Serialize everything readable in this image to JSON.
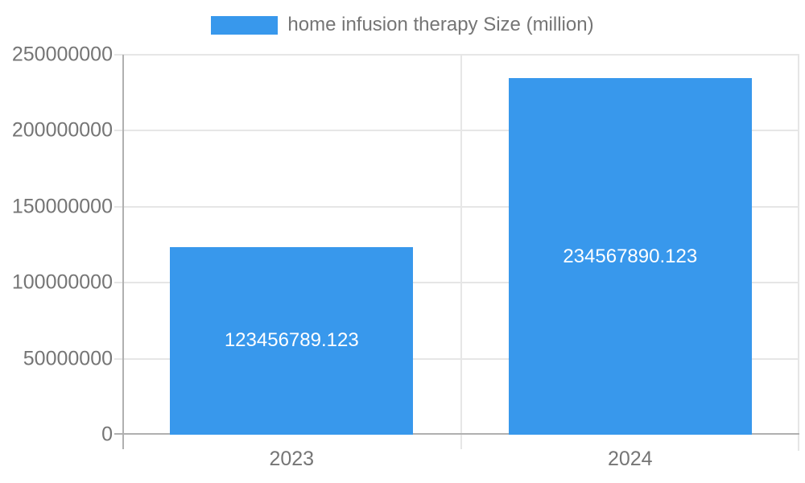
{
  "legend": {
    "label": "home infusion therapy Size (million)"
  },
  "colors": {
    "bar": "#3898ec",
    "axis_text": "#757575",
    "data_label_text": "#ffffff",
    "grid_line": "#e6e6e6",
    "axis_line": "#b0b0b0",
    "background": "#ffffff"
  },
  "chart_data": {
    "type": "bar",
    "title": "",
    "xlabel": "",
    "ylabel": "",
    "categories": [
      "2023",
      "2024"
    ],
    "series": [
      {
        "name": "home infusion therapy Size (million)",
        "values": [
          123456789.123,
          234567890.123
        ]
      }
    ],
    "bar_labels": [
      "123456789.123",
      "234567890.123"
    ],
    "ylim": [
      0,
      250000000
    ],
    "yticks": [
      0,
      50000000,
      100000000,
      150000000,
      200000000,
      250000000
    ],
    "ytick_labels": [
      "0",
      "50000000",
      "100000000",
      "150000000",
      "200000000",
      "250000000"
    ],
    "grid": true,
    "legend_position": "top"
  }
}
